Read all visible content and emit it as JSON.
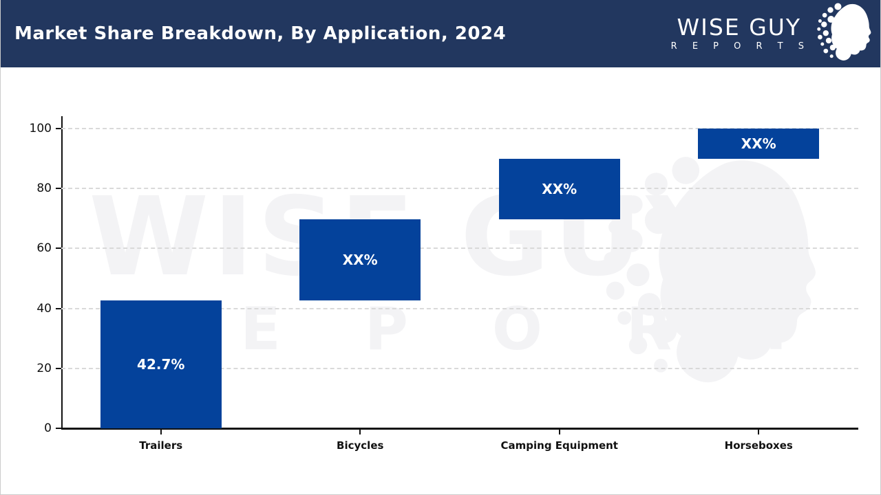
{
  "header": {
    "title": "Market Share Breakdown, By Application, 2024",
    "bg_color": "#22375f",
    "logo": {
      "line1": "WISE GUY",
      "line2": "R E P O R T S"
    }
  },
  "watermark": {
    "line1": "WISE GUY",
    "line2": "R E P O R T S"
  },
  "chart_data": {
    "type": "bar",
    "subtype": "waterfall",
    "title": "Market Share Breakdown, By Application, 2024",
    "xlabel": "",
    "ylabel": "",
    "categories": [
      "Trailers",
      "Bicycles",
      "Camping Equipment",
      "Horseboxes"
    ],
    "segments": [
      {
        "category": "Trailers",
        "start": 0,
        "end": 42.7,
        "label": "42.7%"
      },
      {
        "category": "Bicycles",
        "start": 42.7,
        "end": 69.7,
        "label": "XX%"
      },
      {
        "category": "Camping Equipment",
        "start": 69.7,
        "end": 89.9,
        "label": "XX%"
      },
      {
        "category": "Horseboxes",
        "start": 89.9,
        "end": 100,
        "label": "XX%"
      }
    ],
    "ylim": [
      0,
      100
    ],
    "yticks": [
      0,
      20,
      40,
      60,
      80,
      100
    ],
    "ytick_labels": [
      "0",
      "20",
      "40",
      "60",
      "80",
      "100"
    ],
    "grid": true,
    "legend": false,
    "bar_color": "#04429b",
    "axis_color": "#111111",
    "gridline_color": "#d9d9d9"
  }
}
